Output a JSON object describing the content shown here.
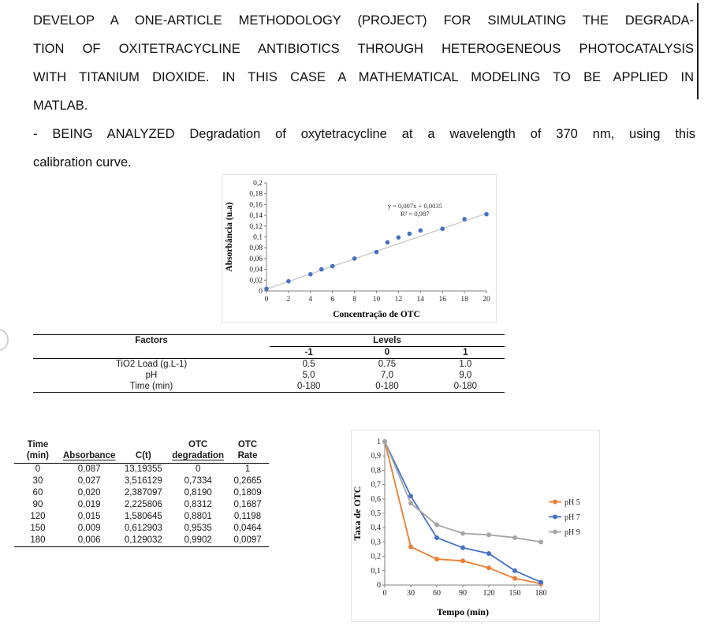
{
  "page": {
    "paragraph1_lines": [
      "DEVELOP A ONE-ARTICLE METHODOLOGY (PROJECT) FOR SIMULATING THE DEGRADA-",
      "TION OF OXITETRACYCLINE ANTIBIOTICS THROUGH HETEROGENEOUS PHOTOCATALYSIS",
      "WITH TITANIUM DIOXIDE. IN THIS CASE A MATHEMATICAL MODELING TO BE APPLIED IN",
      "MATLAB."
    ],
    "paragraph2_lines": [
      "- BEING ANALYZED Degradation of oxytetracycline at a wavelength of 370 nm, using this",
      "calibration curve."
    ]
  },
  "factors_table": {
    "col1_header": "Factors",
    "group_header": "Levels",
    "level_headers": [
      "-1",
      "0",
      "1"
    ],
    "rows": [
      [
        "TiO2 Load (g.L-1)",
        "0.5",
        "0.75",
        "1.0"
      ],
      [
        "pH",
        "5,0",
        "7,0",
        "9,0"
      ],
      [
        "Time (min)",
        "0-180",
        "0-180",
        "0-180"
      ]
    ]
  },
  "kinetics_table": {
    "headers": {
      "time": "Time (min)",
      "absorbance": "Absorbance",
      "ct": "C(t)",
      "otc_deg_line1": "OTC",
      "otc_deg_line2": "degradation",
      "rate": "OTC Rate"
    },
    "rows": [
      [
        "0",
        "0,087",
        "13,19355",
        "0",
        "1"
      ],
      [
        "30",
        "0,027",
        "3,516129",
        "0,7334",
        "0,2665"
      ],
      [
        "60",
        "0,020",
        "2,387097",
        "0,8190",
        "0,1809"
      ],
      [
        "90",
        "0,019",
        "2,225806",
        "0,8312",
        "0,1687"
      ],
      [
        "120",
        "0,015",
        "1,580645",
        "0,8801",
        "0,1198"
      ],
      [
        "150",
        "0,009",
        "0,612903",
        "0,9535",
        "0,0464"
      ],
      [
        "180",
        "0,006",
        "0,129032",
        "0,9902",
        "0,0097"
      ]
    ]
  },
  "chart_data": [
    {
      "type": "scatter",
      "title": "",
      "xlabel": "Concentração de OTC",
      "ylabel": "Absorbância (u.a)",
      "xlim": [
        0,
        20
      ],
      "ylim": [
        0,
        0.2
      ],
      "xticks": [
        0,
        2,
        4,
        6,
        8,
        10,
        12,
        14,
        16,
        18,
        20
      ],
      "yticks": [
        0,
        0.02,
        0.04,
        0.06,
        0.08,
        0.1,
        0.12,
        0.14,
        0.16,
        0.18,
        0.2
      ],
      "annotation": [
        "y = 0,007x + 0,0035",
        "R² = 0,987"
      ],
      "trendline": {
        "slope": 0.007,
        "intercept": 0.0035,
        "color": "#c9c9c9"
      },
      "point_color": "#4472C4",
      "points": [
        [
          0,
          0.004
        ],
        [
          2,
          0.018
        ],
        [
          4,
          0.031
        ],
        [
          5,
          0.04
        ],
        [
          6,
          0.046
        ],
        [
          8,
          0.06
        ],
        [
          10,
          0.072
        ],
        [
          11,
          0.09
        ],
        [
          12,
          0.099
        ],
        [
          13,
          0.106
        ],
        [
          14,
          0.112
        ],
        [
          16,
          0.115
        ],
        [
          18,
          0.133
        ],
        [
          20,
          0.142
        ]
      ]
    },
    {
      "type": "line",
      "title": "",
      "xlabel": "Tempo (min)",
      "ylabel": "Taxa de OTC",
      "x": [
        0,
        30,
        60,
        90,
        120,
        150,
        180
      ],
      "ylim": [
        0,
        1
      ],
      "yticks": [
        0,
        0.1,
        0.2,
        0.3,
        0.4,
        0.5,
        0.6,
        0.7,
        0.8,
        0.9,
        1
      ],
      "legend_position": "right",
      "series": [
        {
          "name": "pH 5",
          "color": "#ED7D31",
          "values": [
            1,
            0.2665,
            0.1809,
            0.1687,
            0.1198,
            0.0464,
            0.0097
          ]
        },
        {
          "name": "pH 7",
          "color": "#4472C4",
          "values": [
            1,
            0.62,
            0.33,
            0.26,
            0.22,
            0.1,
            0.02
          ]
        },
        {
          "name": "pH 9",
          "color": "#A5A5A5",
          "values": [
            1,
            0.57,
            0.42,
            0.36,
            0.35,
            0.33,
            0.3
          ]
        }
      ]
    }
  ]
}
